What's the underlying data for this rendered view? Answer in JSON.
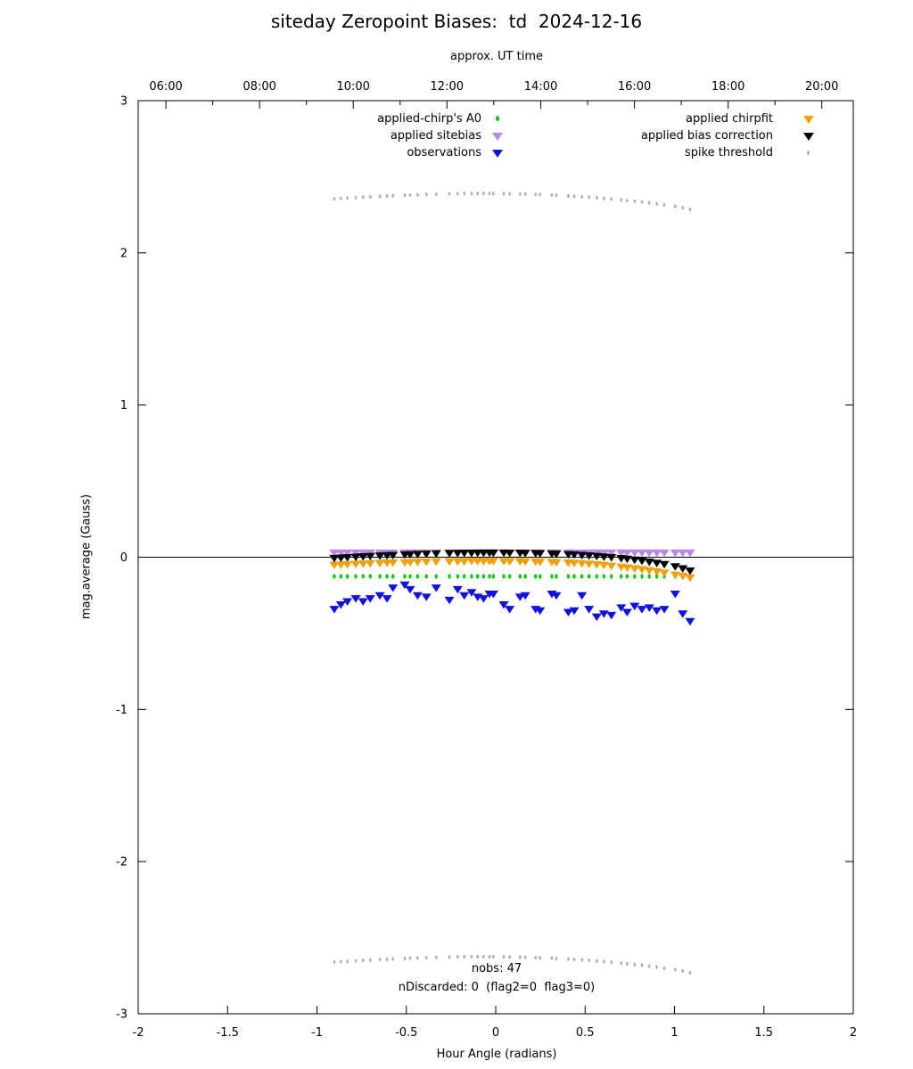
{
  "title": "siteday Zeropoint Biases:  td  2024-12-16",
  "annotations": {
    "nobs": "nobs: 47",
    "ndiscarded": "nDiscarded: 0  (flag2=0  flag3=0)"
  },
  "legend": {
    "left": [
      {
        "label": "applied-chirp's A0",
        "series": "a0"
      },
      {
        "label": "applied sitebias",
        "series": "sitebias"
      },
      {
        "label": "observations",
        "series": "observations"
      }
    ],
    "right": [
      {
        "label": "applied chirpfit",
        "series": "chirpfit"
      },
      {
        "label": "applied bias correction",
        "series": "bias_correction"
      },
      {
        "label": "spike threshold",
        "series": "spike_upper"
      }
    ]
  },
  "chart_data": {
    "type": "scatter",
    "title": "siteday Zeropoint Biases:  td  2024-12-16",
    "xlabel": "Hour Angle (radians)",
    "ylabel": "mag.average (Gauss)",
    "x2label": "approx. UT time",
    "xlim": [
      -2,
      2
    ],
    "ylim": [
      -3,
      3
    ],
    "grid": false,
    "zero_line": true,
    "x_axis": {
      "label": "Hour Angle (radians)",
      "ticks": [
        "-2",
        "-1.5",
        "-1",
        "-0.5",
        "0",
        "0.5",
        "1",
        "1.5",
        "2"
      ],
      "tick_values": [
        -2,
        -1.5,
        -1,
        -0.5,
        0,
        0.5,
        1,
        1.5,
        2
      ]
    },
    "y_axis": {
      "label": "mag.average (Gauss)",
      "ticks": [
        "3",
        "2",
        "1",
        "0",
        "-1",
        "-2",
        "-3"
      ],
      "tick_values": [
        3,
        2,
        1,
        0,
        -1,
        -2,
        -3
      ]
    },
    "top_axis": {
      "label": "approx. UT time",
      "major": [
        {
          "label": "06:00",
          "x": -1.845
        },
        {
          "label": "08:00",
          "x": -1.321
        },
        {
          "label": "10:00",
          "x": -0.797
        },
        {
          "label": "12:00",
          "x": -0.273
        },
        {
          "label": "14:00",
          "x": 0.252
        },
        {
          "label": "16:00",
          "x": 0.776
        },
        {
          "label": "18:00",
          "x": 1.3
        },
        {
          "label": "20:00",
          "x": 1.824
        }
      ],
      "minor_x": [
        -1.583,
        -1.059,
        -0.535,
        -0.011,
        0.514,
        1.038,
        1.562
      ]
    },
    "x": [
      -0.903,
      -0.866,
      -0.83,
      -0.783,
      -0.742,
      -0.702,
      -0.648,
      -0.608,
      -0.575,
      -0.509,
      -0.479,
      -0.437,
      -0.388,
      -0.333,
      -0.259,
      -0.213,
      -0.176,
      -0.135,
      -0.101,
      -0.068,
      -0.035,
      -0.013,
      0.045,
      0.078,
      0.136,
      0.165,
      0.223,
      0.248,
      0.314,
      0.339,
      0.406,
      0.439,
      0.482,
      0.522,
      0.565,
      0.605,
      0.647,
      0.702,
      0.735,
      0.777,
      0.818,
      0.859,
      0.901,
      0.943,
      1.004,
      1.046,
      1.087
    ],
    "series": [
      {
        "key": "spike_upper",
        "name": "spike threshold",
        "marker": "dot-small",
        "color": "#b2b2b2",
        "values": [
          2.355,
          2.358,
          2.36,
          2.363,
          2.366,
          2.368,
          2.371,
          2.373,
          2.375,
          2.378,
          2.38,
          2.382,
          2.384,
          2.386,
          2.388,
          2.389,
          2.39,
          2.39,
          2.39,
          2.39,
          2.39,
          2.39,
          2.389,
          2.388,
          2.387,
          2.386,
          2.384,
          2.383,
          2.38,
          2.378,
          2.374,
          2.372,
          2.369,
          2.366,
          2.362,
          2.358,
          2.354,
          2.348,
          2.344,
          2.339,
          2.334,
          2.328,
          2.322,
          2.315,
          2.305,
          2.296,
          2.285
        ]
      },
      {
        "key": "spike_lower",
        "name": "spike threshold",
        "marker": "dot-small",
        "color": "#b2b2b2",
        "values": [
          -2.66,
          -2.657,
          -2.655,
          -2.652,
          -2.649,
          -2.647,
          -2.644,
          -2.642,
          -2.64,
          -2.637,
          -2.635,
          -2.633,
          -2.631,
          -2.629,
          -2.627,
          -2.626,
          -2.625,
          -2.625,
          -2.625,
          -2.625,
          -2.625,
          -2.625,
          -2.626,
          -2.627,
          -2.628,
          -2.629,
          -2.631,
          -2.632,
          -2.635,
          -2.637,
          -2.641,
          -2.643,
          -2.646,
          -2.649,
          -2.653,
          -2.657,
          -2.661,
          -2.667,
          -2.671,
          -2.676,
          -2.681,
          -2.687,
          -2.693,
          -2.7,
          -2.71,
          -2.719,
          -2.73
        ]
      },
      {
        "key": "a0",
        "name": "applied-chirp's A0",
        "marker": "dot",
        "color": "#00cc00",
        "values": [
          -0.126,
          -0.126,
          -0.126,
          -0.126,
          -0.126,
          -0.126,
          -0.126,
          -0.126,
          -0.126,
          -0.126,
          -0.126,
          -0.126,
          -0.126,
          -0.126,
          -0.126,
          -0.126,
          -0.126,
          -0.126,
          -0.126,
          -0.126,
          -0.126,
          -0.126,
          -0.126,
          -0.126,
          -0.126,
          -0.126,
          -0.126,
          -0.126,
          -0.126,
          -0.126,
          -0.126,
          -0.126,
          -0.126,
          -0.126,
          -0.126,
          -0.126,
          -0.126,
          -0.126,
          -0.126,
          -0.126,
          -0.126,
          -0.126,
          -0.126,
          -0.126,
          -0.126,
          -0.126,
          -0.126
        ]
      },
      {
        "key": "sitebias",
        "name": "applied sitebias",
        "marker": "triangle-down",
        "color": "#b886ec",
        "values": [
          0.03,
          0.03,
          0.03,
          0.03,
          0.03,
          0.03,
          0.03,
          0.03,
          0.03,
          0.03,
          0.03,
          0.03,
          0.03,
          0.03,
          0.03,
          0.03,
          0.03,
          0.03,
          0.03,
          0.03,
          0.03,
          0.03,
          0.03,
          0.03,
          0.03,
          0.03,
          0.03,
          0.03,
          0.03,
          0.03,
          0.03,
          0.03,
          0.03,
          0.03,
          0.03,
          0.03,
          0.03,
          0.03,
          0.03,
          0.03,
          0.03,
          0.03,
          0.03,
          0.03,
          0.03,
          0.03,
          0.03
        ]
      },
      {
        "key": "chirpfit",
        "name": "applied chirpfit",
        "marker": "triangle-down",
        "color": "#f2a007",
        "values": [
          -0.05,
          -0.048,
          -0.046,
          -0.044,
          -0.042,
          -0.04,
          -0.038,
          -0.036,
          -0.035,
          -0.033,
          -0.032,
          -0.03,
          -0.029,
          -0.028,
          -0.027,
          -0.026,
          -0.026,
          -0.025,
          -0.025,
          -0.025,
          -0.025,
          -0.025,
          -0.025,
          -0.026,
          -0.026,
          -0.027,
          -0.028,
          -0.029,
          -0.031,
          -0.032,
          -0.035,
          -0.037,
          -0.04,
          -0.043,
          -0.047,
          -0.051,
          -0.056,
          -0.063,
          -0.067,
          -0.073,
          -0.079,
          -0.086,
          -0.094,
          -0.102,
          -0.115,
          -0.124,
          -0.133
        ]
      },
      {
        "key": "bias_correction",
        "name": "applied bias correction",
        "marker": "triangle-down",
        "color": "#000000",
        "values": [
          -0.005,
          -0.003,
          0.0,
          0.003,
          0.006,
          0.008,
          0.011,
          0.013,
          0.015,
          0.018,
          0.019,
          0.021,
          0.023,
          0.025,
          0.027,
          0.028,
          0.029,
          0.029,
          0.03,
          0.03,
          0.03,
          0.03,
          0.03,
          0.029,
          0.029,
          0.028,
          0.027,
          0.026,
          0.024,
          0.023,
          0.02,
          0.018,
          0.015,
          0.012,
          0.008,
          0.004,
          0.0,
          -0.006,
          -0.01,
          -0.016,
          -0.022,
          -0.029,
          -0.037,
          -0.045,
          -0.06,
          -0.073,
          -0.088
        ]
      },
      {
        "key": "observations",
        "name": "observations",
        "marker": "triangle-down",
        "color": "#1010e0",
        "values": [
          -0.34,
          -0.31,
          -0.29,
          -0.27,
          -0.29,
          -0.27,
          -0.25,
          -0.27,
          -0.2,
          -0.18,
          -0.21,
          -0.25,
          -0.26,
          -0.2,
          -0.28,
          -0.21,
          -0.25,
          -0.23,
          -0.26,
          -0.27,
          -0.24,
          -0.24,
          -0.31,
          -0.34,
          -0.26,
          -0.25,
          -0.34,
          -0.35,
          -0.24,
          -0.25,
          -0.36,
          -0.35,
          -0.25,
          -0.34,
          -0.39,
          -0.37,
          -0.38,
          -0.33,
          -0.36,
          -0.32,
          -0.34,
          -0.33,
          -0.35,
          -0.34,
          -0.24,
          -0.37,
          -0.42
        ]
      }
    ],
    "nobs": 47,
    "nDiscarded": 0,
    "flag2": 0,
    "flag3": 0
  }
}
